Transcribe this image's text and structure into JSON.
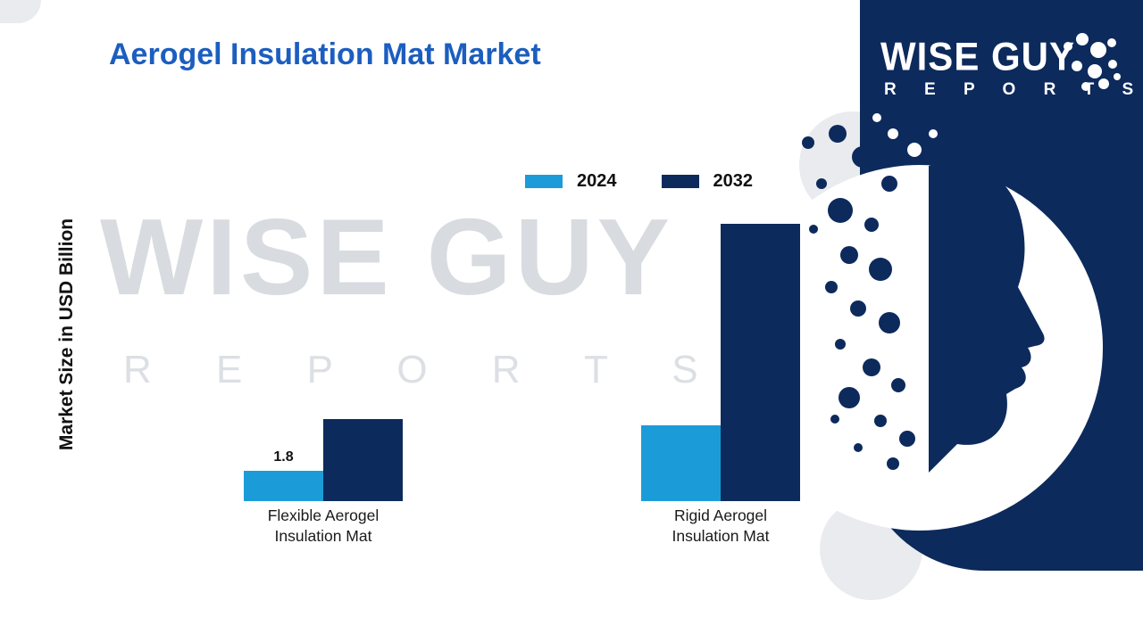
{
  "page": {
    "title": "Aerogel Insulation Mat Market"
  },
  "y_axis": {
    "label": "Market Size in USD Billion"
  },
  "logo": {
    "line1": "WISE GUY",
    "line2": "R E P O R T S"
  },
  "watermark": {
    "line1": "WISE GUY",
    "line2": "R E P O R T S"
  },
  "colors": {
    "title_blue": "#1c5ec0",
    "bar_2024": "#1b9cd8",
    "bar_2032": "#0d2a5c",
    "panel_navy": "#0d2a5c",
    "watermark_gray": "#d8dbdf"
  },
  "chart_data": {
    "type": "bar",
    "title": "Aerogel Insulation Mat Market",
    "xlabel": "",
    "ylabel": "Market Size in USD Billion",
    "categories": [
      "Flexible Aerogel Insulation Mat",
      "Rigid Aerogel Insulation Mat"
    ],
    "series": [
      {
        "name": "2024",
        "color": "#1b9cd8",
        "values": [
          1.8,
          4.5
        ]
      },
      {
        "name": "2032",
        "color": "#0d2a5c",
        "values": [
          4.9,
          16.5
        ]
      }
    ],
    "shown_value_labels": [
      {
        "series_index": 0,
        "category_index": 0,
        "text": "1.8"
      }
    ],
    "ylim": [
      0,
      17
    ],
    "grid": false,
    "legend_position": "top"
  }
}
